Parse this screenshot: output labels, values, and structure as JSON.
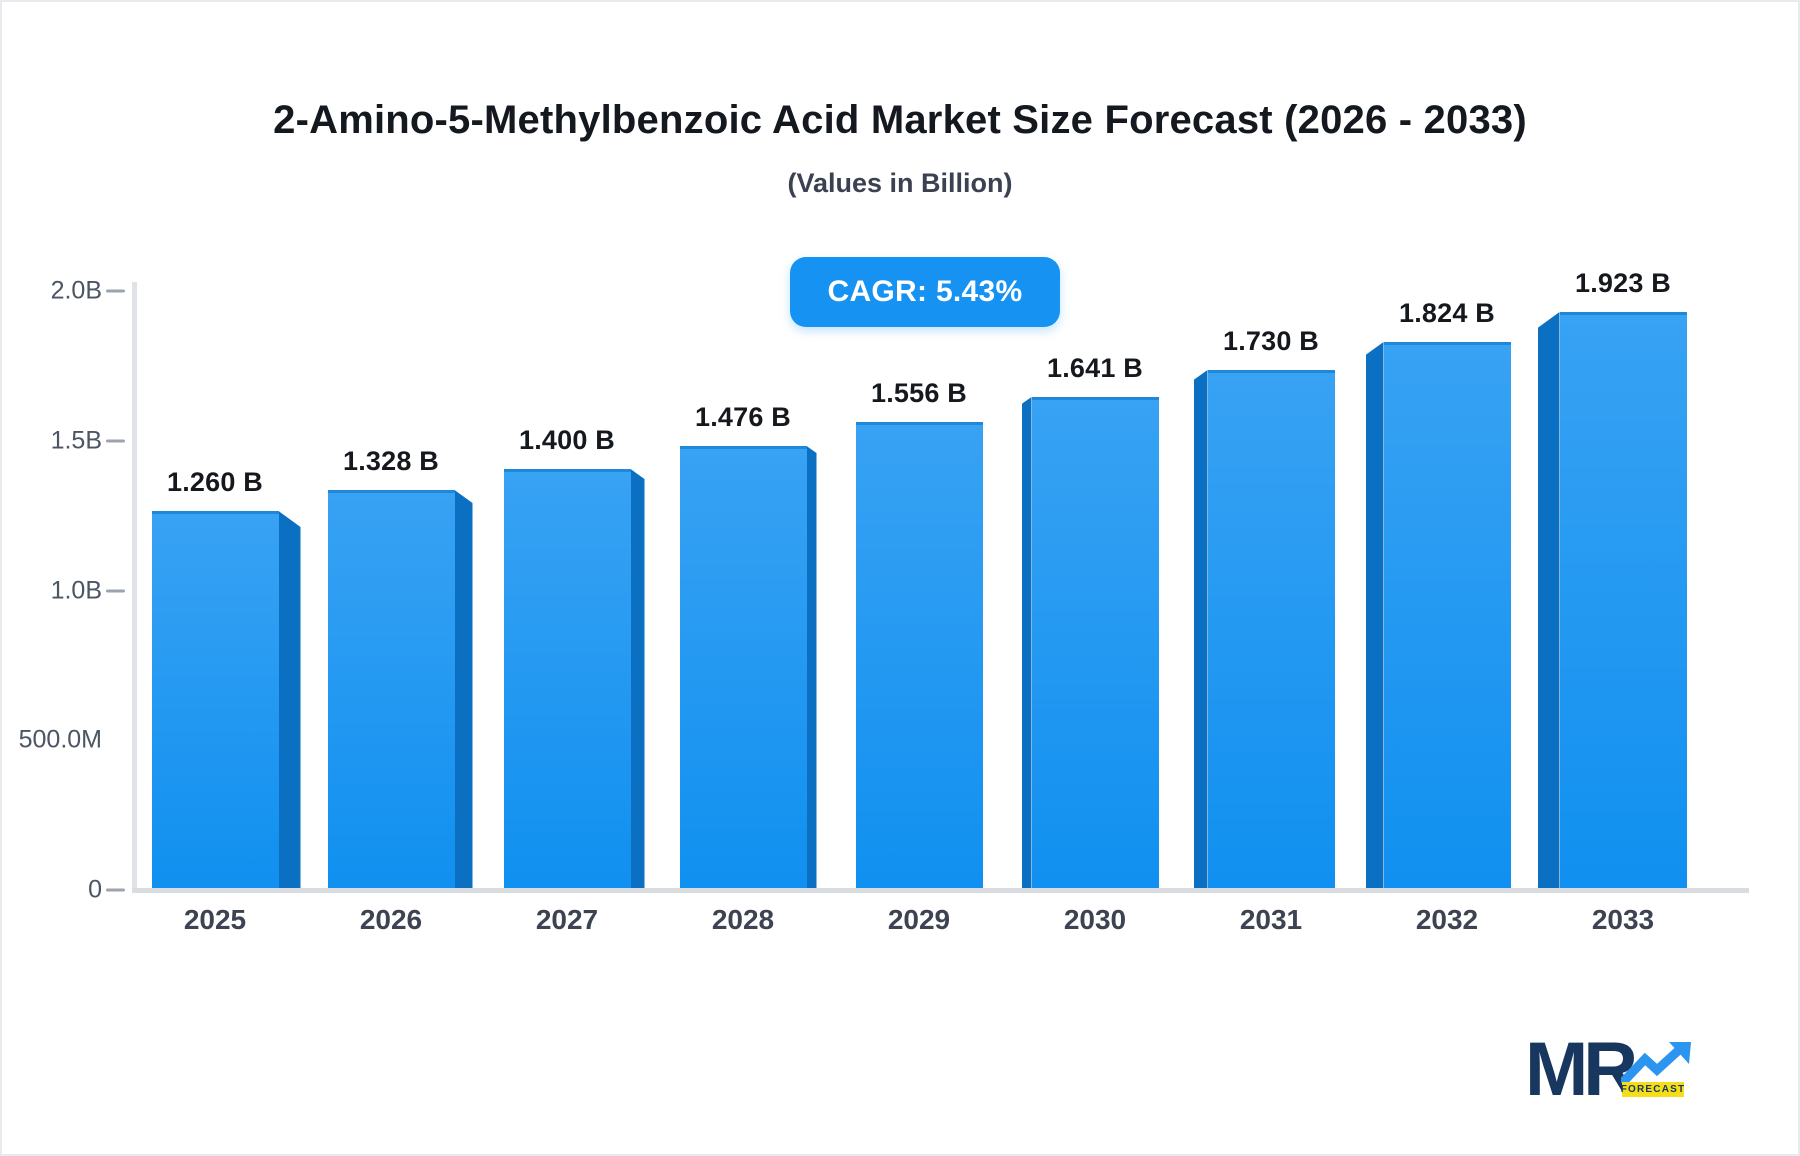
{
  "chart": {
    "title": "2-Amino-5-Methylbenzoic Acid Market Size Forecast (2026 - 2033)",
    "subtitle": "(Values in Billion)",
    "cagr_label": "CAGR: 5.43%"
  },
  "chart_data": {
    "type": "bar",
    "title": "2-Amino-5-Methylbenzoic Acid Market Size Forecast (2026 - 2033)",
    "subtitle": "(Values in Billion)",
    "cagr": "5.43%",
    "categories": [
      "2025",
      "2026",
      "2027",
      "2028",
      "2029",
      "2030",
      "2031",
      "2032",
      "2033"
    ],
    "values": [
      1.26,
      1.328,
      1.4,
      1.476,
      1.556,
      1.641,
      1.73,
      1.824,
      1.923
    ],
    "value_labels": [
      "1.260 B",
      "1.328 B",
      "1.400 B",
      "1.476 B",
      "1.556 B",
      "1.641 B",
      "1.730 B",
      "1.824 B",
      "1.923 B"
    ],
    "unit": "Billion USD",
    "xlabel": "",
    "ylabel": "",
    "ylim": [
      0,
      2.0
    ],
    "y_ticks": [
      {
        "label": "0",
        "value": 0,
        "dash": true
      },
      {
        "label": "500.0M",
        "value": 0.5,
        "dash": false
      },
      {
        "label": "1.0B",
        "value": 1.0,
        "dash": true
      },
      {
        "label": "1.5B",
        "value": 1.5,
        "dash": true
      },
      {
        "label": "2.0B",
        "value": 2.0,
        "dash": true
      }
    ],
    "grid": false,
    "legend": false,
    "colors": {
      "bar_top": "#38a2f3",
      "bar_bottom": "#1090f0",
      "bar_edge": "#2088d8",
      "bar_side": "#0b70c2",
      "badge": "#1592f2",
      "axis": "#dfe2e7",
      "tick_text": "#4b5563",
      "label_text": "#15181d"
    }
  },
  "logo": {
    "text": "MR",
    "sub": "FORECAST"
  }
}
